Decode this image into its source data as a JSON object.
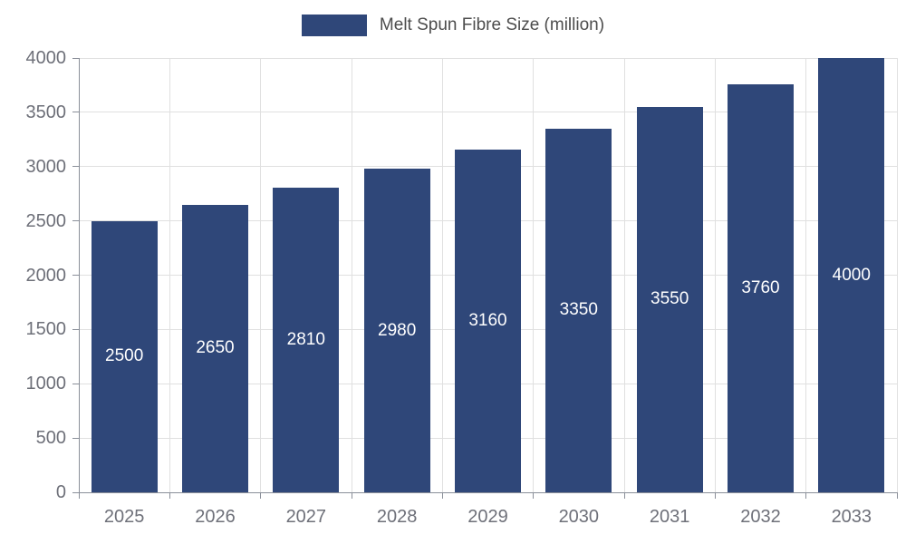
{
  "legend": {
    "label": "Melt Spun Fibre Size (million)"
  },
  "colors": {
    "bar": "#2f4779",
    "grid": "#e0e0e0",
    "axis": "#8a8f99",
    "tick_label": "#6e7079",
    "value_label": "#ffffff",
    "legend_text": "#4d4d4d"
  },
  "chart_data": {
    "type": "bar",
    "categories": [
      "2025",
      "2026",
      "2027",
      "2028",
      "2029",
      "2030",
      "2031",
      "2032",
      "2033"
    ],
    "values": [
      2500,
      2650,
      2810,
      2980,
      3160,
      3350,
      3550,
      3760,
      4000
    ],
    "series": [
      {
        "name": "Melt Spun Fibre Size (million)",
        "values": [
          2500,
          2650,
          2810,
          2980,
          3160,
          3350,
          3550,
          3760,
          4000
        ]
      }
    ],
    "title": "Melt Spun Fibre Size (million)",
    "xlabel": "",
    "ylabel": "",
    "ylim": [
      0,
      4000
    ],
    "ytick_step": 500,
    "yticks": [
      0,
      500,
      1000,
      1500,
      2000,
      2500,
      3000,
      3500,
      4000
    ],
    "grid": true,
    "value_labels": "inside-center",
    "legend_position": "top"
  }
}
